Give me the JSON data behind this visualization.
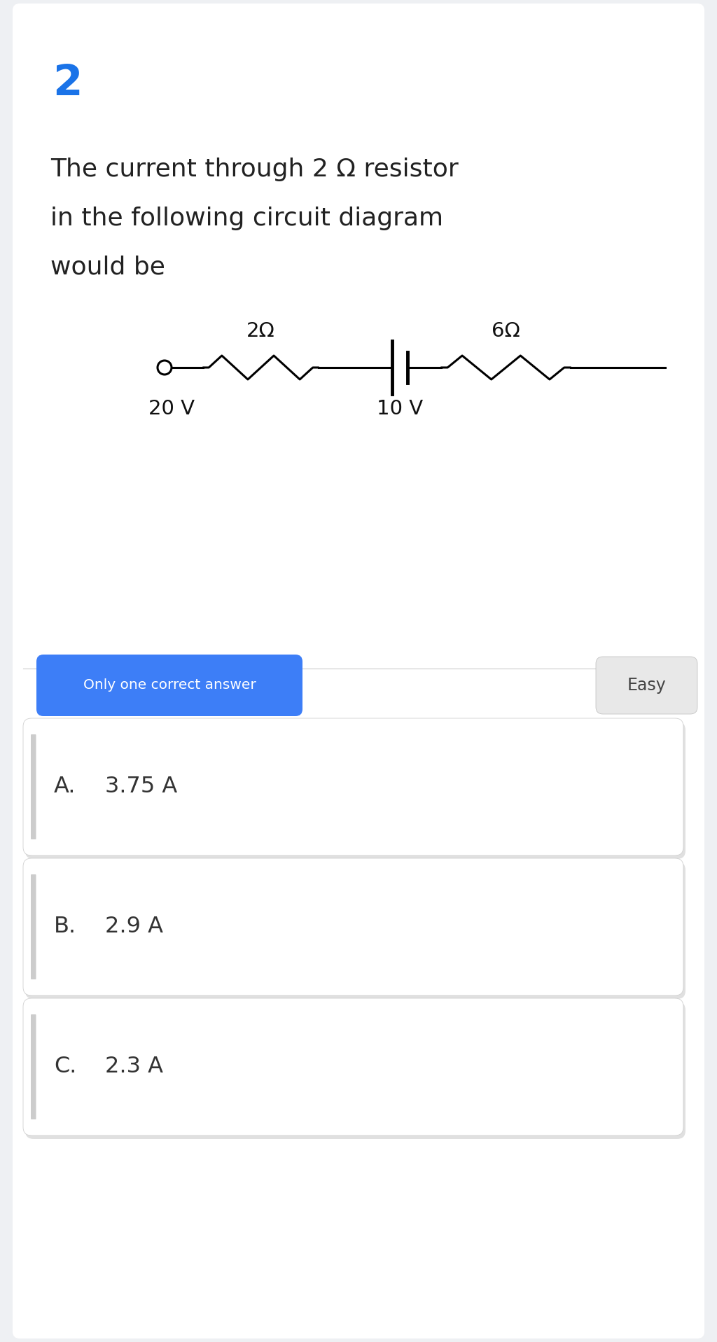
{
  "question_number": "2",
  "question_number_color": "#1a73e8",
  "question_text_line1": "The current through 2 Ω resistor",
  "question_text_line2": "in the following circuit diagram",
  "question_text_line3": "would be",
  "background_color": "#eef0f3",
  "card_color": "#ffffff",
  "resistor1_label": "2Ω",
  "resistor2_label": "6Ω",
  "voltage1_label": "20 V",
  "voltage2_label": "10 V",
  "button_text": "Only one correct answer",
  "button_color": "#3d7ef7",
  "button_text_color": "#ffffff",
  "difficulty_text": "Easy",
  "difficulty_bg": "#e8e8e8",
  "difficulty_text_color": "#444444",
  "options": [
    {
      "label": "A.",
      "text": "3.75 A"
    },
    {
      "label": "B.",
      "text": "2.9 A"
    },
    {
      "label": "C.",
      "text": "2.3 A"
    }
  ],
  "option_text_color": "#333333",
  "fig_w": 10.24,
  "fig_h": 19.17,
  "dpi": 100
}
